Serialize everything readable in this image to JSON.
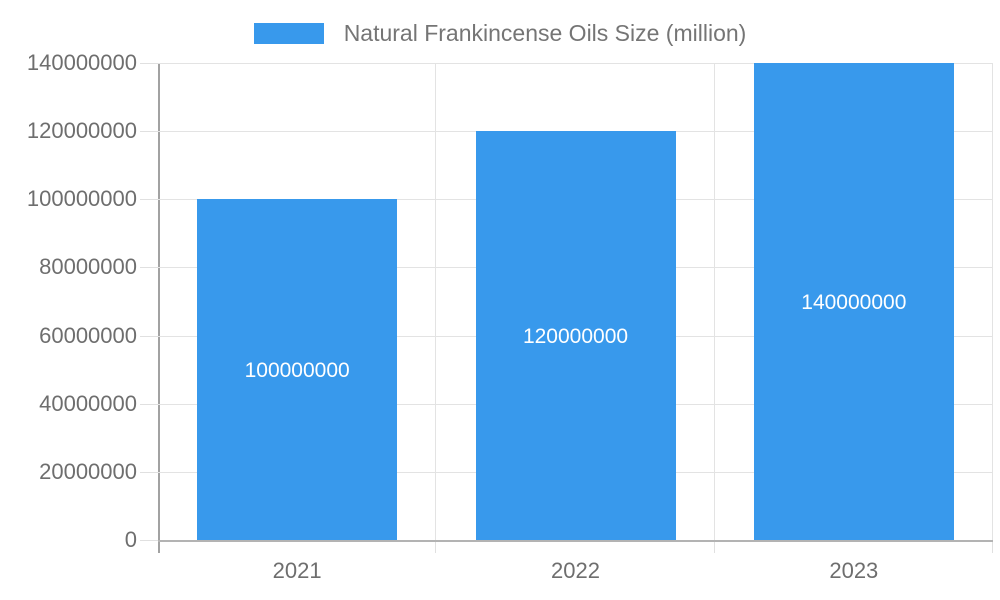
{
  "legend": {
    "label": "Natural Frankincense Oils Size (million)"
  },
  "colors": {
    "bar": "#3899EC",
    "axis_text": "#6e6e6e",
    "axis_line": "#ababab",
    "gridline": "#e3e3e3",
    "data_label": "#ffffff",
    "background": "#ffffff"
  },
  "chart_data": {
    "type": "bar",
    "title": "",
    "xlabel": "",
    "ylabel": "",
    "categories": [
      "2021",
      "2022",
      "2023"
    ],
    "series": [
      {
        "name": "Natural Frankincense Oils Size (million)",
        "values": [
          100000000,
          120000000,
          140000000
        ],
        "data_labels": [
          "100000000",
          "120000000",
          "140000000"
        ]
      }
    ],
    "ylim": [
      0,
      140000000
    ],
    "yticks": [
      0,
      20000000,
      40000000,
      60000000,
      80000000,
      100000000,
      120000000,
      140000000
    ],
    "ytick_labels": [
      "0",
      "20000000",
      "40000000",
      "60000000",
      "80000000",
      "100000000",
      "120000000",
      "140000000"
    ],
    "grid": true,
    "legend_position": "top"
  }
}
